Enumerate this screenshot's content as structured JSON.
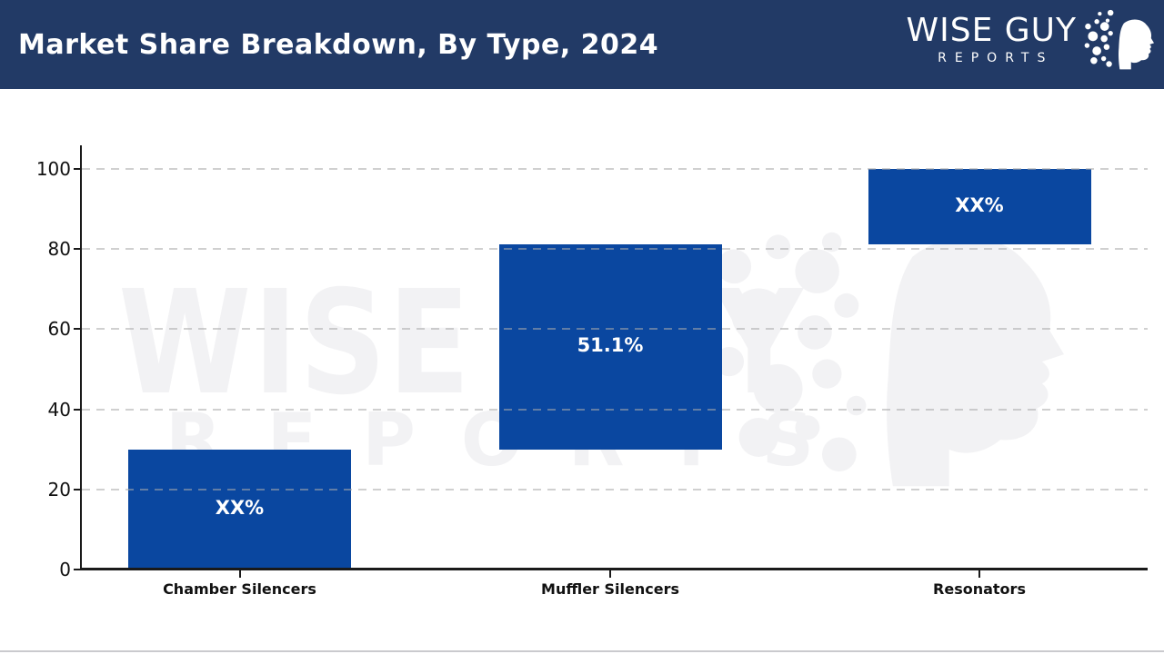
{
  "header": {
    "title": "Market Share Breakdown, By Type, 2024",
    "logo": {
      "brand": "WISE GUY",
      "brand_sub": "REPORTS"
    }
  },
  "watermark": {
    "brand": "WISE GUY",
    "brand_sub": "REPORTS"
  },
  "chart_data": {
    "type": "bar",
    "subtype": "floating-column-waterfall",
    "title": "Market Share Breakdown, By Type, 2024",
    "categories": [
      "Chamber Silencers",
      "Muffler Silencers",
      "Resonators"
    ],
    "bars": [
      {
        "category": "Chamber Silencers",
        "label": "XX%",
        "start": 0,
        "end": 30.0
      },
      {
        "category": "Muffler Silencers",
        "label": "51.1%",
        "start": 30.0,
        "end": 81.1
      },
      {
        "category": "Resonators",
        "label": "XX%",
        "start": 81.1,
        "end": 100.0
      }
    ],
    "xlabel": "",
    "ylabel": "",
    "yticks": [
      0,
      20,
      40,
      60,
      80,
      100
    ],
    "ylim": [
      0,
      105.9
    ],
    "grid": "dashed-horizontal",
    "legend": false,
    "bar_color": "#0a47a0",
    "bar_label_color": "#ffffff"
  },
  "colors": {
    "header_bg": "#223a66",
    "axis": "#1a1a1a",
    "gridline": "#dadada",
    "watermark": "#f2f2f4",
    "footer_line": "#cacace"
  }
}
